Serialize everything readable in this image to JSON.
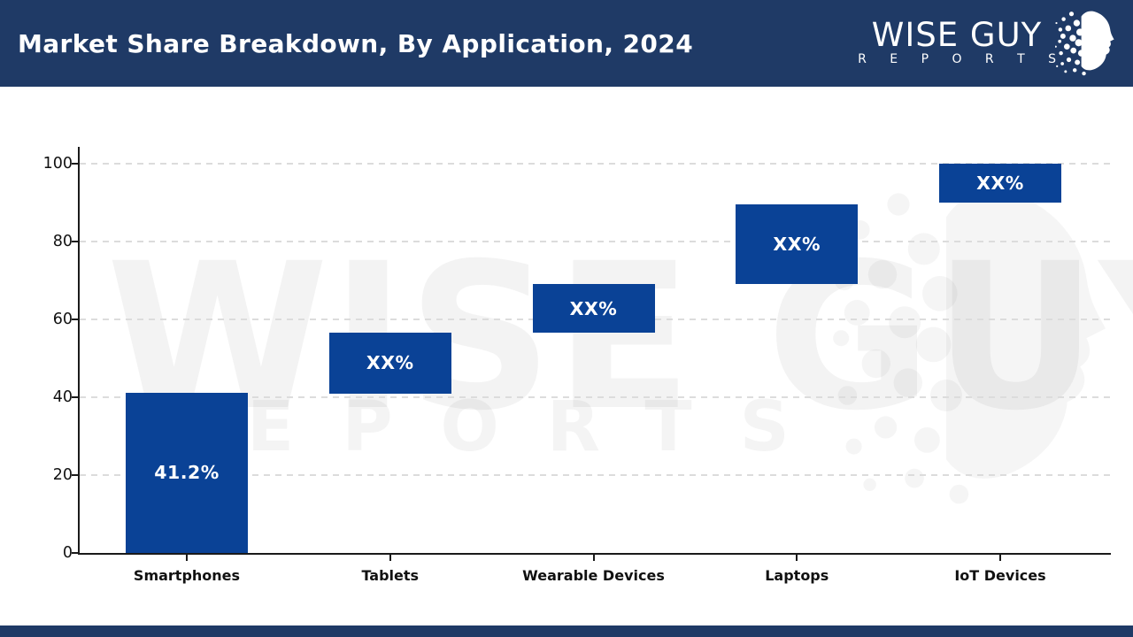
{
  "header": {
    "title": "Market Share Breakdown, By Application, 2024",
    "logo": {
      "line1": "WISE GUY",
      "line2": "R E P O R T S"
    }
  },
  "watermark": {
    "line1": "WISE GUY",
    "line2": "REPORTS"
  },
  "colors": {
    "header_bg": "#1f3a66",
    "footer_bg": "#1f3a66",
    "bar": "#0a4296",
    "bar_label": "#ffffff",
    "grid": "#dcdcdc",
    "axis": "#1a1a1a",
    "title_text": "#ffffff"
  },
  "chart_data": {
    "type": "bar",
    "subtype": "waterfall",
    "title": "Market Share Breakdown, By Application, 2024",
    "categories": [
      "Smartphones",
      "Tablets",
      "Wearable Devices",
      "Laptops",
      "IoT Devices"
    ],
    "segments": [
      {
        "category": "Smartphones",
        "start": 0,
        "end": 41.2,
        "label": "41.2%"
      },
      {
        "category": "Tablets",
        "start": 41,
        "end": 56.5,
        "label": "XX%"
      },
      {
        "category": "Wearable Devices",
        "start": 56.5,
        "end": 69,
        "label": "XX%"
      },
      {
        "category": "Laptops",
        "start": 69,
        "end": 89.5,
        "label": "XX%"
      },
      {
        "category": "IoT Devices",
        "start": 90,
        "end": 100,
        "label": "XX%"
      }
    ],
    "yticks": [
      0,
      20,
      40,
      60,
      80,
      100
    ],
    "ylim": [
      0,
      105
    ],
    "xlabel": "",
    "ylabel": "",
    "grid": "horizontal-dashed",
    "legend": "none"
  }
}
